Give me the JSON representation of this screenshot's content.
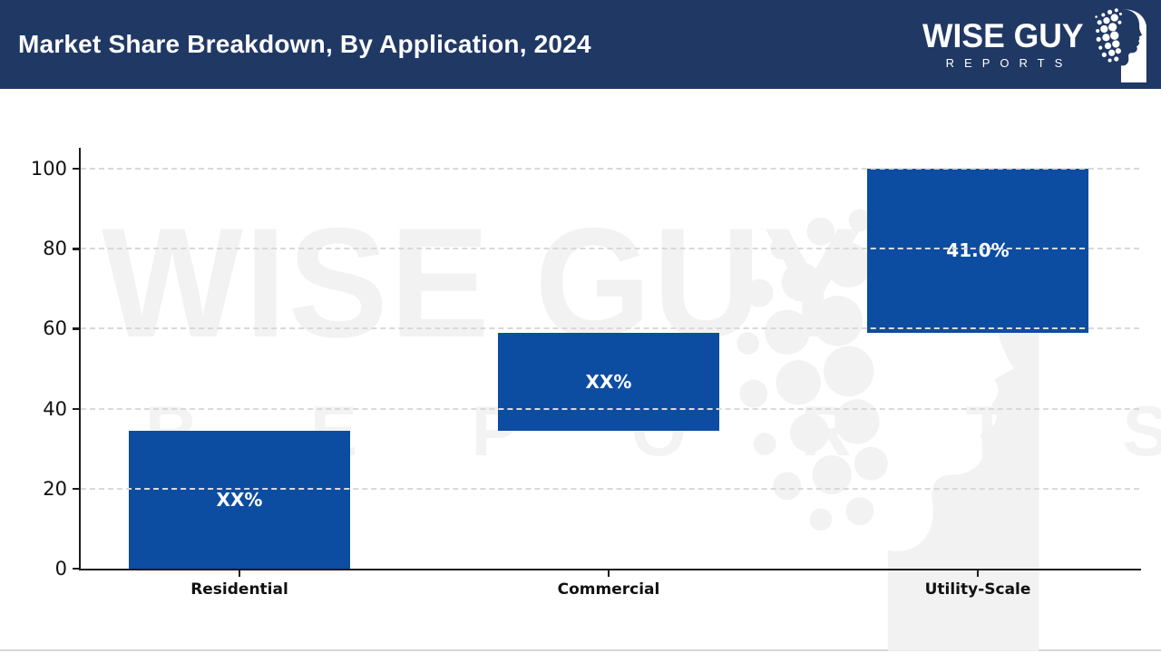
{
  "header": {
    "title": "Market Share Breakdown, By Application, 2024",
    "logo_line1": "WISE GUY",
    "logo_line2": "REPORTS"
  },
  "watermark": {
    "line1": "WISE GUY",
    "line2": "REPORTS"
  },
  "chart_data": {
    "type": "bar",
    "subtype": "waterfall",
    "title": "Market Share Breakdown, By Application, 2024",
    "categories": [
      "Residential",
      "Commercial",
      "Utility-Scale"
    ],
    "bars": [
      {
        "category": "Residential",
        "start": 0,
        "end": 34.5,
        "value": 34.5,
        "label": "XX%"
      },
      {
        "category": "Commercial",
        "start": 34.5,
        "end": 59.0,
        "value": 24.5,
        "label": "XX%"
      },
      {
        "category": "Utility-Scale",
        "start": 59.0,
        "end": 100,
        "value": 41.0,
        "label": "41.0%"
      }
    ],
    "yticks": [
      0,
      20,
      40,
      60,
      80,
      100
    ],
    "ylim": [
      0,
      105
    ],
    "grid": "horizontal-dashed",
    "legend": "none",
    "xlabel": "",
    "ylabel": ""
  },
  "colors": {
    "header_bg": "#203864",
    "bar_fill": "#0c4da2",
    "gridline": "#d9d9d9",
    "axis": "#1c1c1c",
    "title_text": "#ffffff",
    "watermark": "#f2f2f2"
  }
}
